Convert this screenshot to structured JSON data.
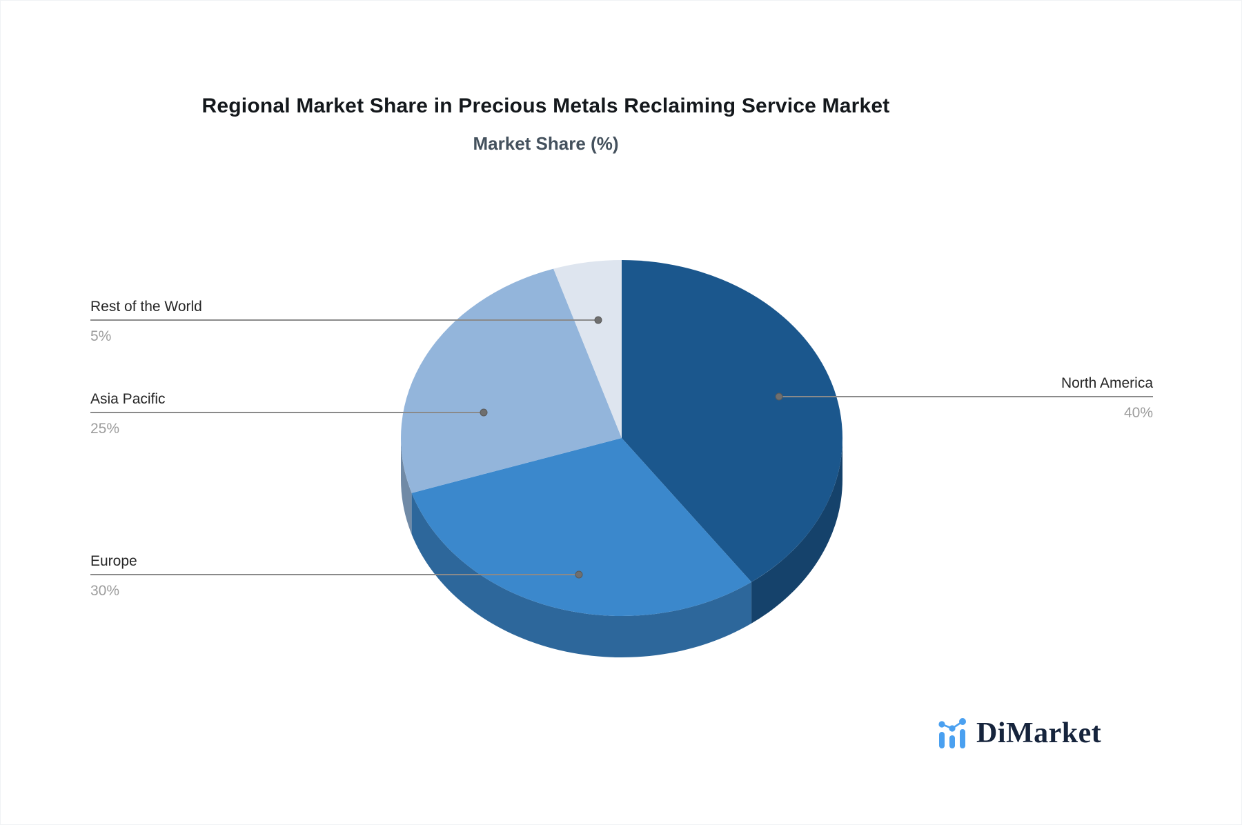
{
  "title": "Regional Market Share in Precious Metals Reclaiming Service Market",
  "subtitle": "Market Share (%)",
  "brand": {
    "name": "DiMarket"
  },
  "colors": {
    "background": "#ffffff",
    "title_text": "#14181c",
    "subtitle_text": "#44515d",
    "slice_label_text": "#262626",
    "slice_pct_text": "#9c9c9c",
    "leader_line": "#8a8a8a",
    "leader_dot": "#6f6f6f",
    "logo_icon": "#4aa0f0",
    "logo_text": "#16243c"
  },
  "chart_data": {
    "type": "pie",
    "style": "3d",
    "title": "Regional Market Share in Precious Metals Reclaiming Service Market",
    "subtitle": "Market Share (%)",
    "unit": "%",
    "legend_position": "none",
    "start_angle_deg": 0,
    "direction": "clockwise",
    "slices": [
      {
        "label": "North America",
        "value": 40,
        "pct_label": "40%",
        "color": "#1b578d",
        "label_side": "right"
      },
      {
        "label": "Europe",
        "value": 30,
        "pct_label": "30%",
        "color": "#3b88cc",
        "label_side": "left"
      },
      {
        "label": "Asia Pacific",
        "value": 25,
        "pct_label": "25%",
        "color": "#93b5db",
        "label_side": "left"
      },
      {
        "label": "Rest of the World",
        "value": 5,
        "pct_label": "5%",
        "color": "#dee5ef",
        "label_side": "left"
      }
    ]
  }
}
